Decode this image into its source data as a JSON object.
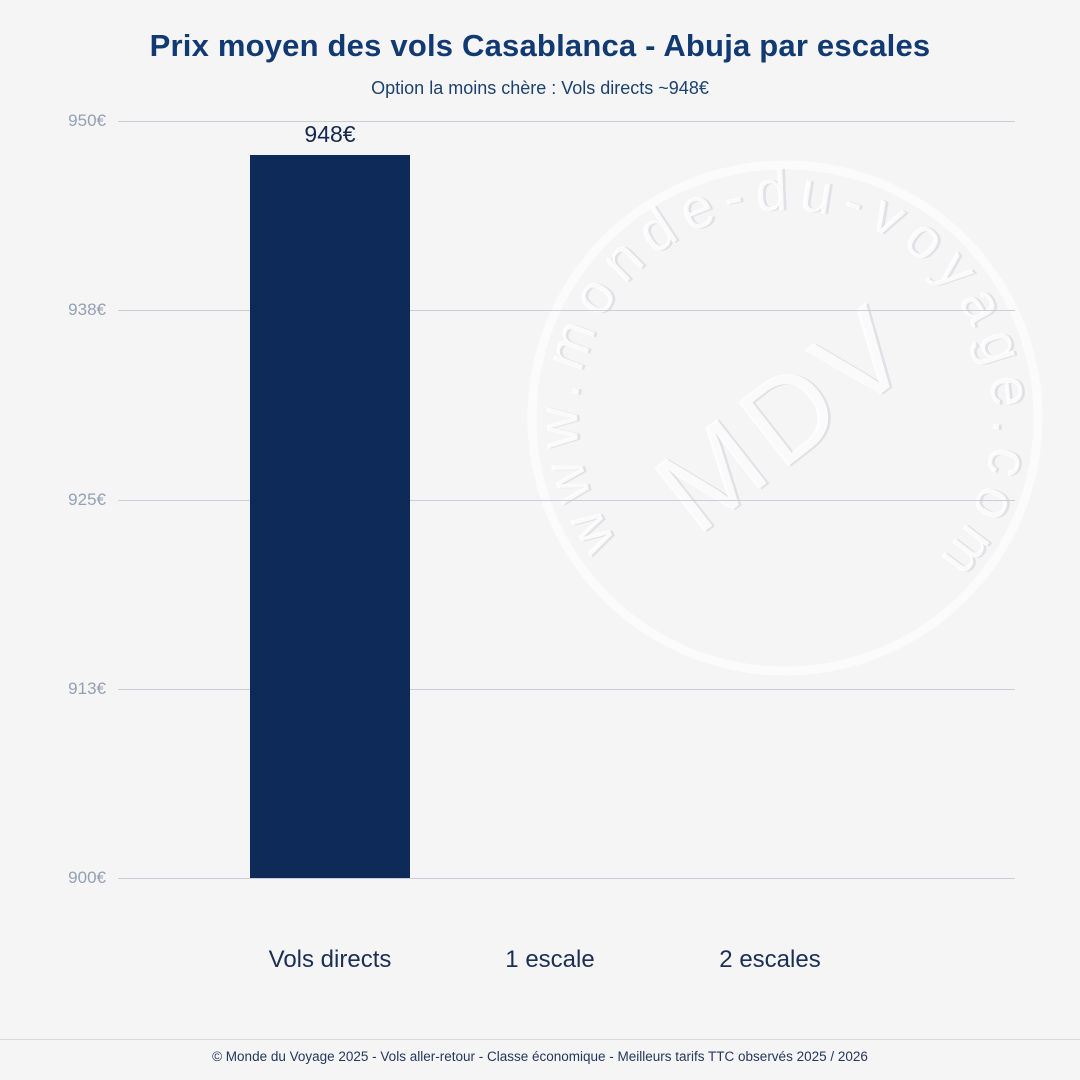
{
  "chart_data": {
    "type": "bar",
    "title": "Prix moyen des vols Casablanca - Abuja par escales",
    "subtitle": "Option la moins chère : Vols directs ~948€",
    "categories": [
      "Vols directs",
      "1 escale",
      "2 escales"
    ],
    "values": [
      948,
      null,
      null
    ],
    "value_labels": [
      "948€",
      null,
      null
    ],
    "xlabel": "",
    "ylabel": "",
    "ylim": [
      900,
      950
    ],
    "yticks": [
      {
        "value": 950,
        "label": "950€"
      },
      {
        "value": 937.5,
        "label": "938€"
      },
      {
        "value": 925,
        "label": "925€"
      },
      {
        "value": 912.5,
        "label": "913€"
      },
      {
        "value": 900,
        "label": "900€"
      }
    ],
    "grid": true,
    "legend": false,
    "bar_color": "#0d2a58"
  },
  "colors": {
    "bar_navy": "#0d2a58",
    "title_navy": "#123a72",
    "tick_gray_blue": "#94a0b4",
    "background": "#f5f5f6"
  },
  "watermark": {
    "circle_text": "www.monde-du-voyage.com",
    "center_text": "MDV"
  },
  "footer": {
    "text": "© Monde du Voyage 2025 - Vols aller-retour - Classe économique - Meilleurs tarifs TTC observés 2025 / 2026"
  }
}
